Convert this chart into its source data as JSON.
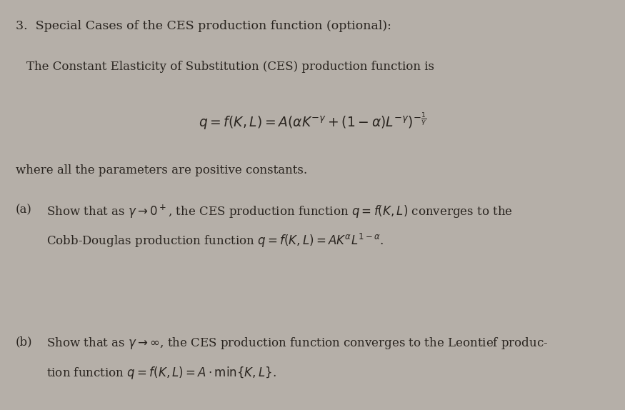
{
  "background_color": "#b5afa8",
  "text_color": "#2a2520",
  "fig_width": 8.75,
  "fig_height": 5.74,
  "dpi": 100,
  "title_text": "3.  Special Cases of the CES production function (optional):",
  "intro_text": "The Constant Elasticity of Substitution (CES) production function is",
  "formula": "$q = f(K, L) = A\\left(\\alpha K^{-\\gamma} + (1 - \\alpha)L^{-\\gamma}\\right)^{-\\frac{1}{\\gamma}}$",
  "where_text": "where all the parameters are positive constants.",
  "part_a_label": "(a)",
  "part_a_line1": "Show that as $\\gamma \\rightarrow 0^+$, the CES production function $q = f(K, L)$ converges to the",
  "part_a_line2": "Cobb-Douglas production function $q = f(K, L) = AK^{\\alpha}L^{1-\\alpha}$.",
  "part_b_label": "(b)",
  "part_b_line1": "Show that as $\\gamma \\rightarrow \\infty$, the CES production function converges to the Leontief produc-",
  "part_b_line2": "tion function $q = f(K, L) = A \\cdot \\min\\{K, L\\}$.",
  "font_size_title": 12.5,
  "font_size_body": 12.0,
  "font_size_formula": 13.5
}
